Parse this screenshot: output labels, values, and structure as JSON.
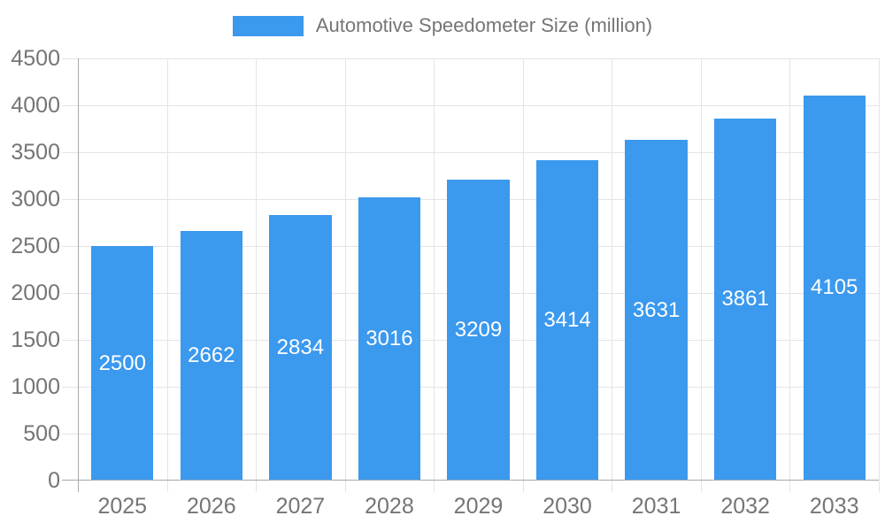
{
  "legend": {
    "label": "Automotive Speedometer Size (million)"
  },
  "chart_data": {
    "type": "bar",
    "title": "Automotive Speedometer Size (million)",
    "categories": [
      "2025",
      "2026",
      "2027",
      "2028",
      "2029",
      "2030",
      "2031",
      "2032",
      "2033"
    ],
    "values": [
      2500,
      2662,
      2834,
      3016,
      3209,
      3414,
      3631,
      3861,
      4105
    ],
    "xlabel": "",
    "ylabel": "",
    "ylim": [
      0,
      4500
    ],
    "ytick_step": 500,
    "ytick_labels": [
      "0",
      "500",
      "1000",
      "1500",
      "2000",
      "2500",
      "3000",
      "3500",
      "4000",
      "4500"
    ],
    "grid": true,
    "legend_position": "top-center",
    "bar_label_position": "inside-center",
    "colors": {
      "bar": "#3B99EE",
      "grid": "#E4E4E4",
      "axis": "#A8A8A8",
      "tick_text": "#757575",
      "bar_label": "#FFFFFF",
      "background": "#FFFFFF"
    }
  }
}
